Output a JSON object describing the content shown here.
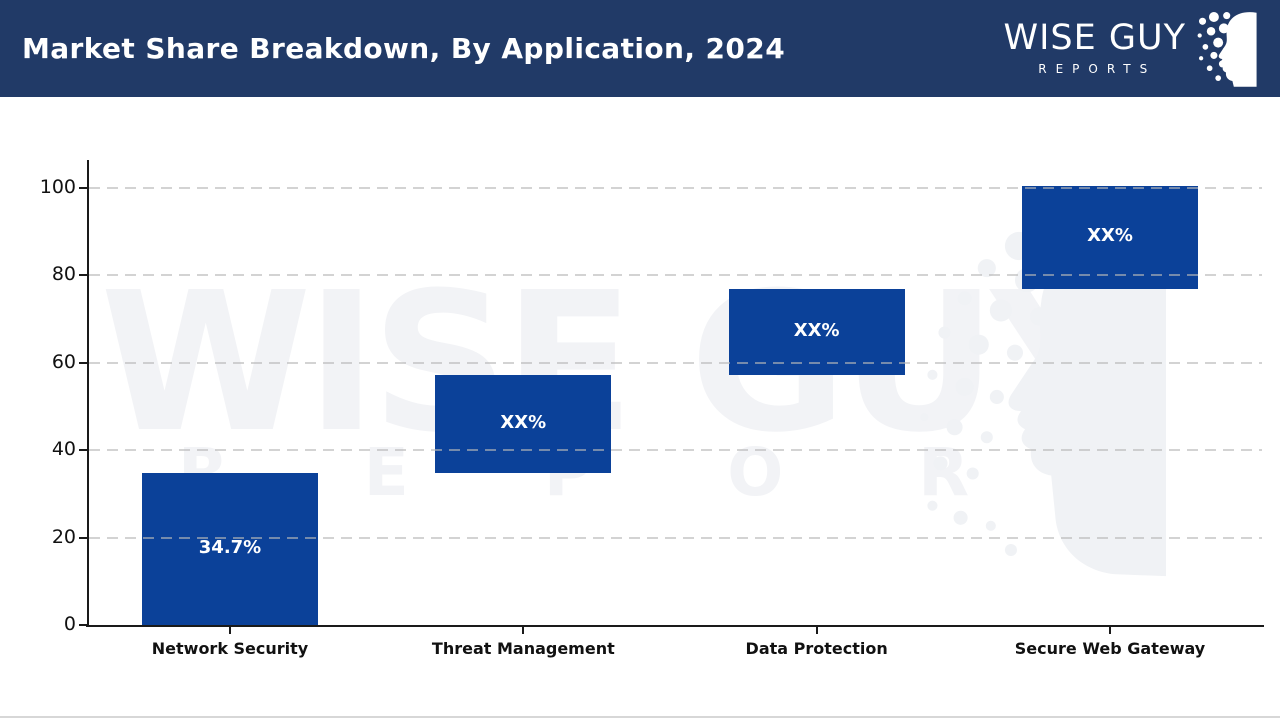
{
  "header": {
    "title": "Market Share Breakdown, By Application, 2024",
    "bg_color": "#213a67",
    "logo_line1": "WISE GUY",
    "logo_line2": "REPORTS"
  },
  "watermark": {
    "line1": "WISE GUY",
    "line2": "R E P O R T S"
  },
  "chart_data": {
    "type": "bar",
    "variant": "floating-segments (waterfall style, cumulative market share)",
    "title": "Market Share Breakdown, By Application, 2024",
    "categories": [
      "Network Security",
      "Threat Management",
      "Data Protection",
      "Secure Web Gateway"
    ],
    "segments": [
      {
        "category": "Network Security",
        "start": 0,
        "end": 34.7,
        "label": "34.7%"
      },
      {
        "category": "Threat Management",
        "start": 34.7,
        "end": 57.1,
        "label": "XX%"
      },
      {
        "category": "Data Protection",
        "start": 57.1,
        "end": 76.9,
        "label": "XX%"
      },
      {
        "category": "Secure Web Gateway",
        "start": 76.9,
        "end": 100.4,
        "label": "XX%"
      }
    ],
    "y_ticks": [
      0,
      20,
      40,
      60,
      80,
      100
    ],
    "ylim": [
      0,
      105
    ],
    "xlabel": "",
    "ylabel": "",
    "legend": "none",
    "grid": {
      "orientation": "horizontal",
      "style": "dashed",
      "color": "#d9d9d9",
      "drawn_over_bars": true
    },
    "bar_color": "#0b4199",
    "bar_label_color": "#ffffff",
    "axis_color": "#1a1a1a"
  }
}
